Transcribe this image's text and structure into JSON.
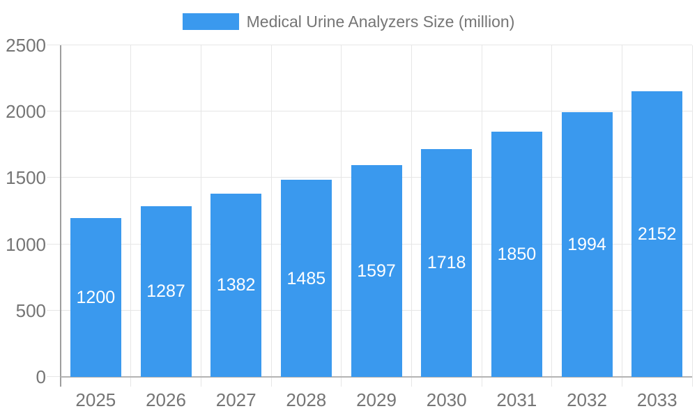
{
  "chart_data": {
    "type": "bar",
    "title": "Medical Urine Analyzers Size (million)",
    "categories": [
      "2025",
      "2026",
      "2027",
      "2028",
      "2029",
      "2030",
      "2031",
      "2032",
      "2033"
    ],
    "values": [
      1200,
      1287,
      1382,
      1485,
      1597,
      1718,
      1850,
      1994,
      2152
    ],
    "xlabel": "",
    "ylabel": "",
    "ylim": [
      0,
      2500
    ],
    "yticks": [
      0,
      500,
      1000,
      1500,
      2000,
      2500
    ],
    "grid": true,
    "legend_position": "top",
    "colors": {
      "bar": "#3A99EE",
      "value_label": "#ffffff",
      "axis_text": "#757575",
      "grid_line": "#e6e6e6",
      "y_axis_line": "#9e9e9e",
      "x_axis_line": "#b3b3b3"
    }
  }
}
